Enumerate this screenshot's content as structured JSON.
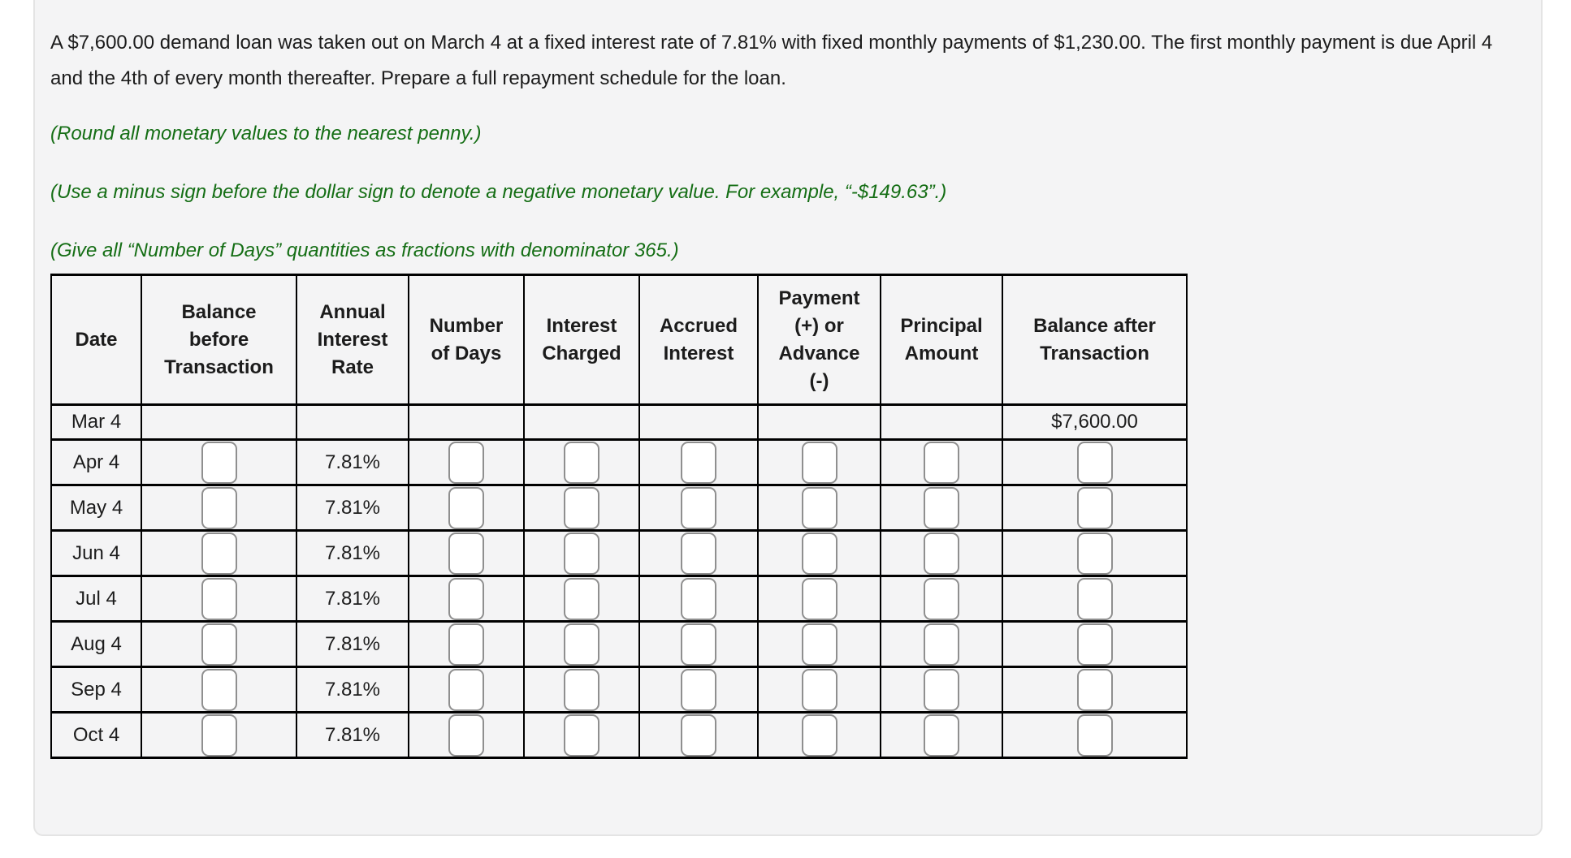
{
  "problem": {
    "statement": "A $7,600.00 demand loan was taken out on March 4 at a fixed interest rate of 7.81% with fixed monthly payments of $1,230.00. The first monthly payment is due April 4 and the 4th of every month thereafter. Prepare a full repayment schedule for the loan.",
    "hints": [
      "(Round all monetary values to the nearest penny.)",
      "(Use a minus sign before the dollar sign to denote a negative monetary value. For example, “-$149.63”.)",
      "(Give all “Number of Days” quantities as fractions with denominator 365.)"
    ]
  },
  "table": {
    "headers": [
      "Date",
      "Balance\nbefore\nTransaction",
      "Annual\nInterest\nRate",
      "Number\nof Days",
      "Interest\nCharged",
      "Accrued\nInterest",
      "Payment\n(+) or\nAdvance\n(-)",
      "Principal\nAmount",
      "Balance after\nTransaction"
    ],
    "rows": [
      {
        "date": "Mar 4",
        "annual_interest_rate": "",
        "balance_after": "$7,600.00"
      },
      {
        "date": "Apr 4",
        "annual_interest_rate": "7.81%"
      },
      {
        "date": "May 4",
        "annual_interest_rate": "7.81%"
      },
      {
        "date": "Jun 4",
        "annual_interest_rate": "7.81%"
      },
      {
        "date": "Jul 4",
        "annual_interest_rate": "7.81%"
      },
      {
        "date": "Aug 4",
        "annual_interest_rate": "7.81%"
      },
      {
        "date": "Sep 4",
        "annual_interest_rate": "7.81%"
      },
      {
        "date": "Oct 4",
        "annual_interest_rate": "7.81%"
      }
    ]
  },
  "colors": {
    "hint_text": "#156e15",
    "panel_background": "#f4f4f5",
    "table_line": "#000000",
    "input_border": "#8f8f8f"
  }
}
